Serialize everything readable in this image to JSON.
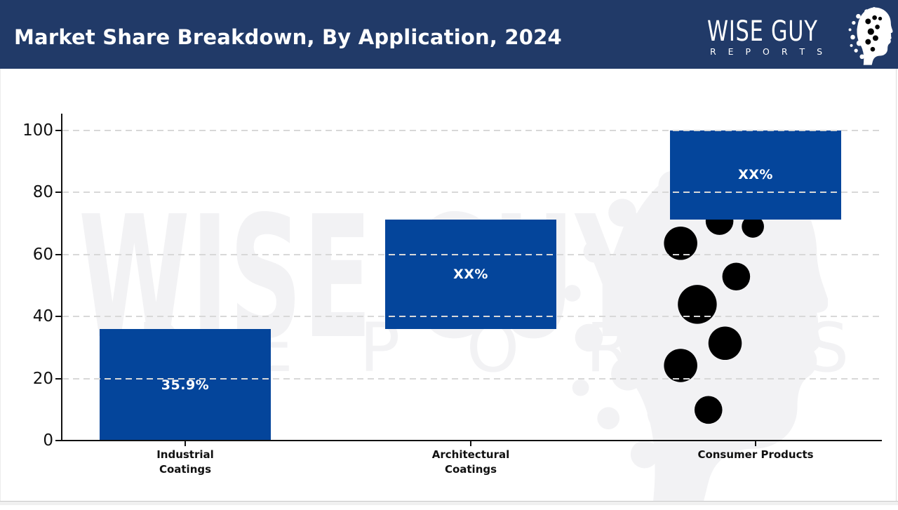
{
  "header": {
    "title": "Market Share Breakdown, By Application, 2024",
    "logo": {
      "line1": "WISE GUY",
      "line2": "R E P O R T S"
    }
  },
  "watermark": {
    "line1": "WISE GUY",
    "line2": "R E P O R T S"
  },
  "colors": {
    "header_bg": "#213A68",
    "bar": "#04459B",
    "grid": "#D8D8D8",
    "axis": "#111111",
    "bar_label": "#FFFFFF",
    "watermark": "#F2F2F4"
  },
  "chart_data": {
    "type": "bar",
    "subtype": "waterfall",
    "title": "Market Share Breakdown, By Application, 2024",
    "xlabel": "",
    "ylabel": "",
    "ylim": [
      0,
      100
    ],
    "yticks": [
      0,
      20,
      40,
      60,
      80,
      100
    ],
    "grid": "horizontal dashed, drawn over bars",
    "legend": "none",
    "categories": [
      {
        "lines": [
          "Industrial",
          "Coatings"
        ]
      },
      {
        "lines": [
          "Architectural",
          "Coatings"
        ]
      },
      {
        "lines": [
          "Consumer Products"
        ]
      }
    ],
    "segments": [
      {
        "category": "Industrial Coatings",
        "start": 0,
        "end": 35.9,
        "label": "35.9%"
      },
      {
        "category": "Architectural Coatings",
        "start": 35.9,
        "end": 71.1,
        "label": "XX%"
      },
      {
        "category": "Consumer Products",
        "start": 71.1,
        "end": 100,
        "label": "XX%"
      }
    ]
  }
}
